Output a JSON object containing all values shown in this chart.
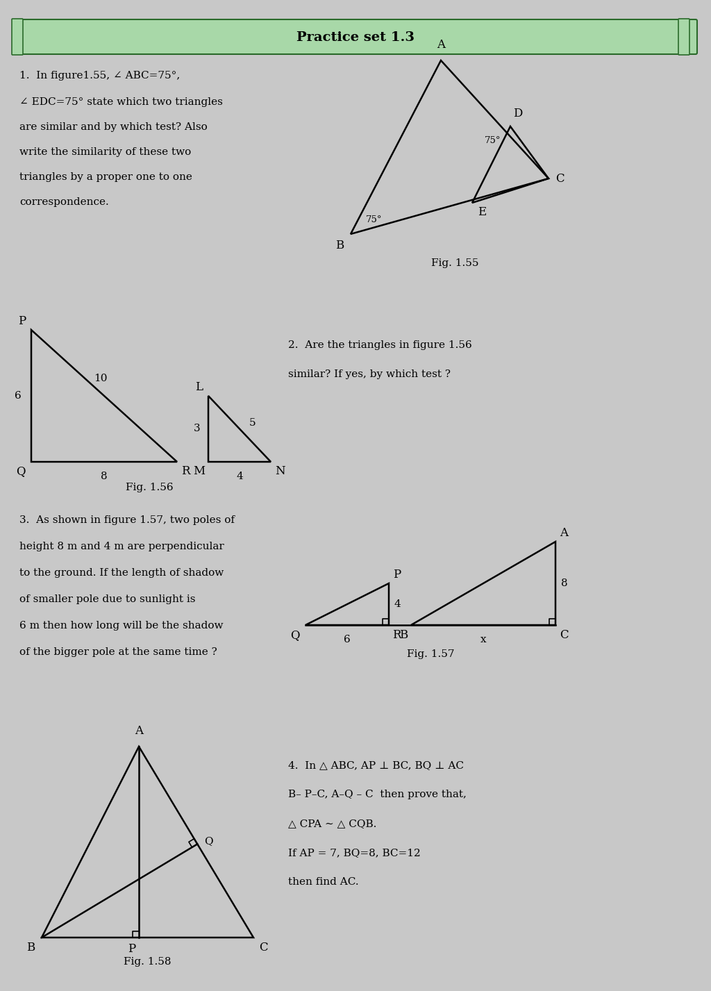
{
  "title": "Practice set 1.3",
  "title_bg": "#a8d8a8",
  "bg_color": "#c8c8c8",
  "q1_text_line1": "1.  In figure1.55, ∠ ABC=75°,",
  "q1_text_rest": [
    "∠ EDC=75° state which two triangles",
    "are similar and by which test? Also",
    "write the similarity of these two",
    "triangles by a proper one to one",
    "correspondence."
  ],
  "q2_text": [
    "2.  Are the triangles in figure 1.56",
    "similar? If yes, by which test ?"
  ],
  "q3_text": [
    "3.  As shown in figure 1.57, two poles of",
    "height 8 m and 4 m are perpendicular",
    "to the ground. If the length of shadow",
    "of smaller pole due to sunlight is",
    "6 m then how long will be the shadow",
    "of the bigger pole at the same time ?"
  ],
  "q4_text": [
    "4.  In △ ABC, AP ⊥ BC, BQ ⊥ AC",
    "B– P–C, A–Q – C  then prove that,",
    "△ CPA ∼ △ CQB.",
    "If AP = 7, BQ=8, BC=12",
    "then find AC."
  ],
  "fig155_label": "Fig. 1.55",
  "fig156_label": "Fig. 1.56",
  "fig157_label": "Fig. 1.57",
  "fig158_label": "Fig. 1.58"
}
